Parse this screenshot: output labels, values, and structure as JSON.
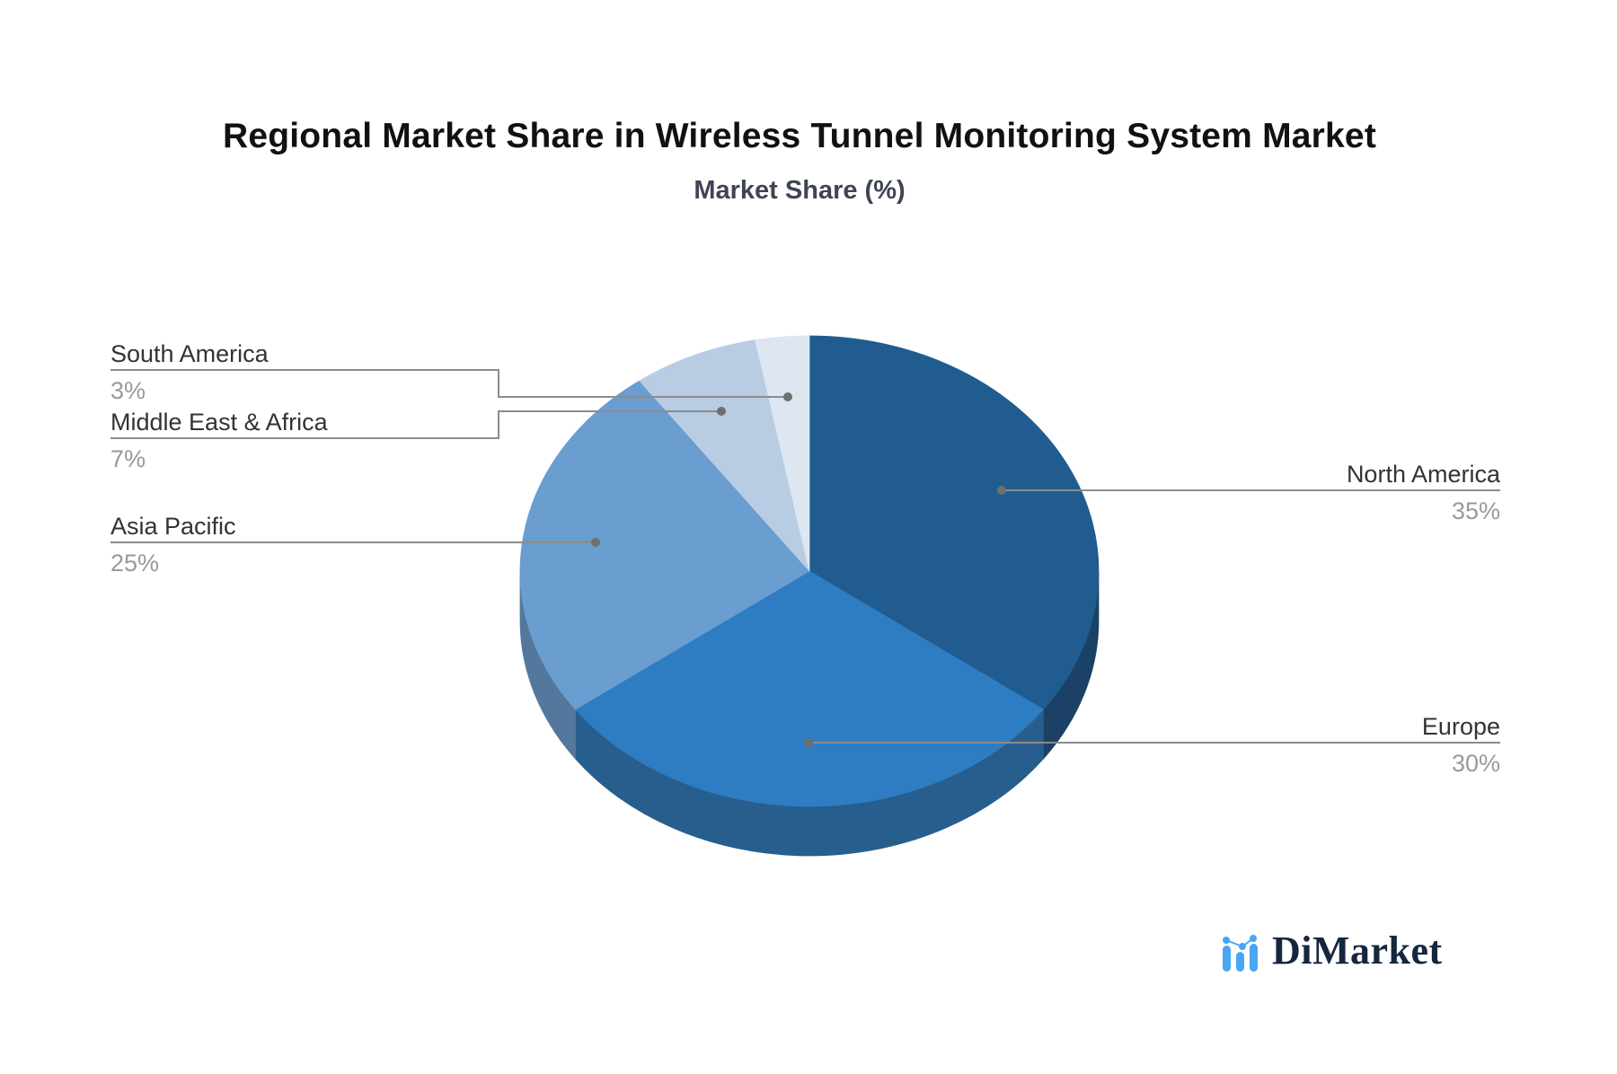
{
  "title": "Regional Market Share in Wireless Tunnel Monitoring System Market",
  "subtitle": "Market Share (%)",
  "logo": {
    "text": "DiMarket",
    "icon": "bar-chart-icon",
    "icon_color": "#4aa5f4",
    "text_color": "#16263e"
  },
  "chart_data": {
    "type": "pie",
    "title": "Regional Market Share in Wireless Tunnel Monitoring System Market",
    "subtitle": "Market Share (%)",
    "unit": "%",
    "style": "3d",
    "direction": "clockwise",
    "start_angle_deg": 0,
    "legend": "none",
    "slices": [
      {
        "label": "North America",
        "value": 35,
        "value_label": "35%",
        "color": "#205c90",
        "side_color": "#1b4166"
      },
      {
        "label": "Europe",
        "value": 30,
        "value_label": "30%",
        "color": "#2e7cc1",
        "side_color": "#275e8e"
      },
      {
        "label": "Asia Pacific",
        "value": 25,
        "value_label": "25%",
        "color": "#6a9dd0",
        "side_color": "#54789d"
      },
      {
        "label": "Middle East & Africa",
        "value": 7,
        "value_label": "7%",
        "color": "#b8cce4",
        "side_color": "#8fa9c6"
      },
      {
        "label": "South America",
        "value": 3,
        "value_label": "3%",
        "color": "#dde6f1",
        "side_color": "#afbdd0"
      }
    ],
    "label_style": {
      "name_color": "#333333",
      "value_color": "#999999",
      "line_color": "#8c8c8c",
      "dot_color": "#6f6f6f"
    }
  }
}
